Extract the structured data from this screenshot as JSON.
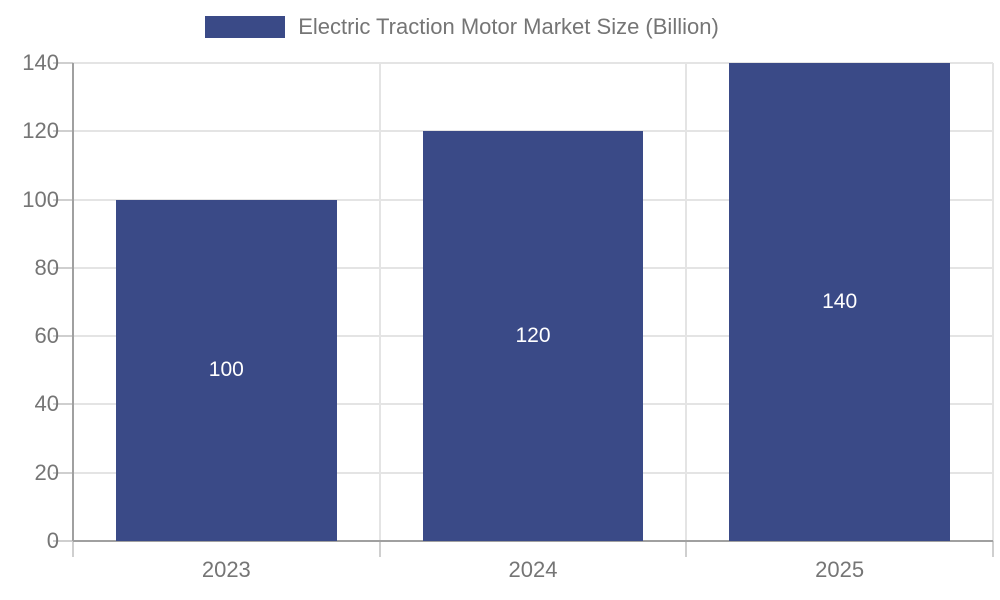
{
  "legend": {
    "label": "Electric Traction Motor Market Size (Billion)"
  },
  "chart_data": {
    "type": "bar",
    "title": "Electric Traction Motor Market Size (Billion)",
    "categories": [
      "2023",
      "2024",
      "2025"
    ],
    "values": [
      100,
      120,
      140
    ],
    "bar_labels": [
      "100",
      "120",
      "140"
    ],
    "xlabel": "",
    "ylabel": "",
    "ylim": [
      0,
      140
    ],
    "yticks": [
      0,
      20,
      40,
      60,
      80,
      100,
      120,
      140
    ],
    "grid": true,
    "legend_position": "top-center",
    "colors": {
      "bar": "#3A4A87",
      "grid": "#E4E4E4",
      "tick": "#CFCFCF",
      "axis": "#A0A0A0",
      "text": "#757575",
      "bar_label": "#FFFFFF",
      "background": "#FFFFFF"
    }
  }
}
